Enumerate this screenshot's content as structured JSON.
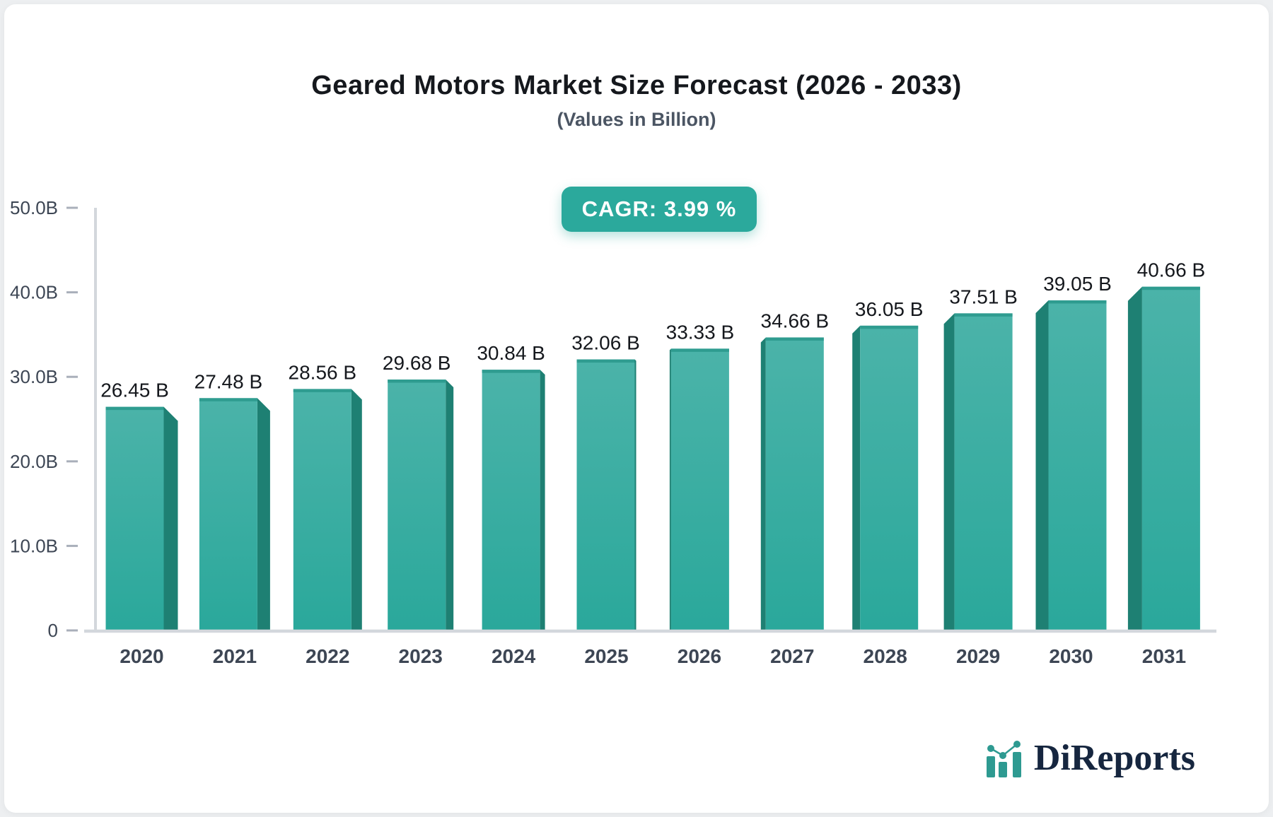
{
  "page": {
    "background": "#edeff1",
    "card_background": "#ffffff"
  },
  "header": {
    "title": "Geared Motors Market Size Forecast (2026 - 2033)",
    "subtitle": "(Values in Billion)"
  },
  "badge": {
    "label": "CAGR: 3.99 %",
    "background": "#2ba99c",
    "text_color": "#ffffff"
  },
  "chart_data": {
    "type": "bar",
    "title": "Geared Motors Market Size Forecast (2026 - 2033)",
    "subtitle": "(Values in Billion)",
    "categories": [
      "2020",
      "2021",
      "2022",
      "2023",
      "2024",
      "2025",
      "2026",
      "2027",
      "2028",
      "2029",
      "2030",
      "2031"
    ],
    "values": [
      26.45,
      27.48,
      28.56,
      29.68,
      30.84,
      32.06,
      33.33,
      34.66,
      36.05,
      37.51,
      39.05,
      40.66
    ],
    "value_labels": [
      "26.45 B",
      "27.48 B",
      "28.56 B",
      "29.68 B",
      "30.84 B",
      "32.06 B",
      "33.33 B",
      "34.66 B",
      "36.05 B",
      "37.51 B",
      "39.05 B",
      "40.66 B"
    ],
    "xlabel": "",
    "ylabel": "",
    "ylim": [
      0,
      50
    ],
    "y_ticks": [
      {
        "value": 0,
        "label": "0"
      },
      {
        "value": 10,
        "label": "10.0B"
      },
      {
        "value": 20,
        "label": "20.0B"
      },
      {
        "value": 30,
        "label": "30.0B"
      },
      {
        "value": 40,
        "label": "40.0B"
      },
      {
        "value": 50,
        "label": "50.0B"
      }
    ],
    "gridlines": "none",
    "legend": "none",
    "bar_style": {
      "face_top": "#4bb3a9",
      "face_bottom": "#2aa89b",
      "side": "#1e8073",
      "top_edge": "#2f9c90"
    },
    "axis_style": {
      "line_color": "#d3d7dc",
      "tick_color": "#a9afba",
      "label_color": "#3d4654",
      "value_label_color": "#15181d"
    }
  },
  "logo": {
    "text": "DiReports",
    "icon": "mini-bar-chart-trendline-icon",
    "text_color": "#16263f",
    "accent_color": "#2e9a91"
  }
}
